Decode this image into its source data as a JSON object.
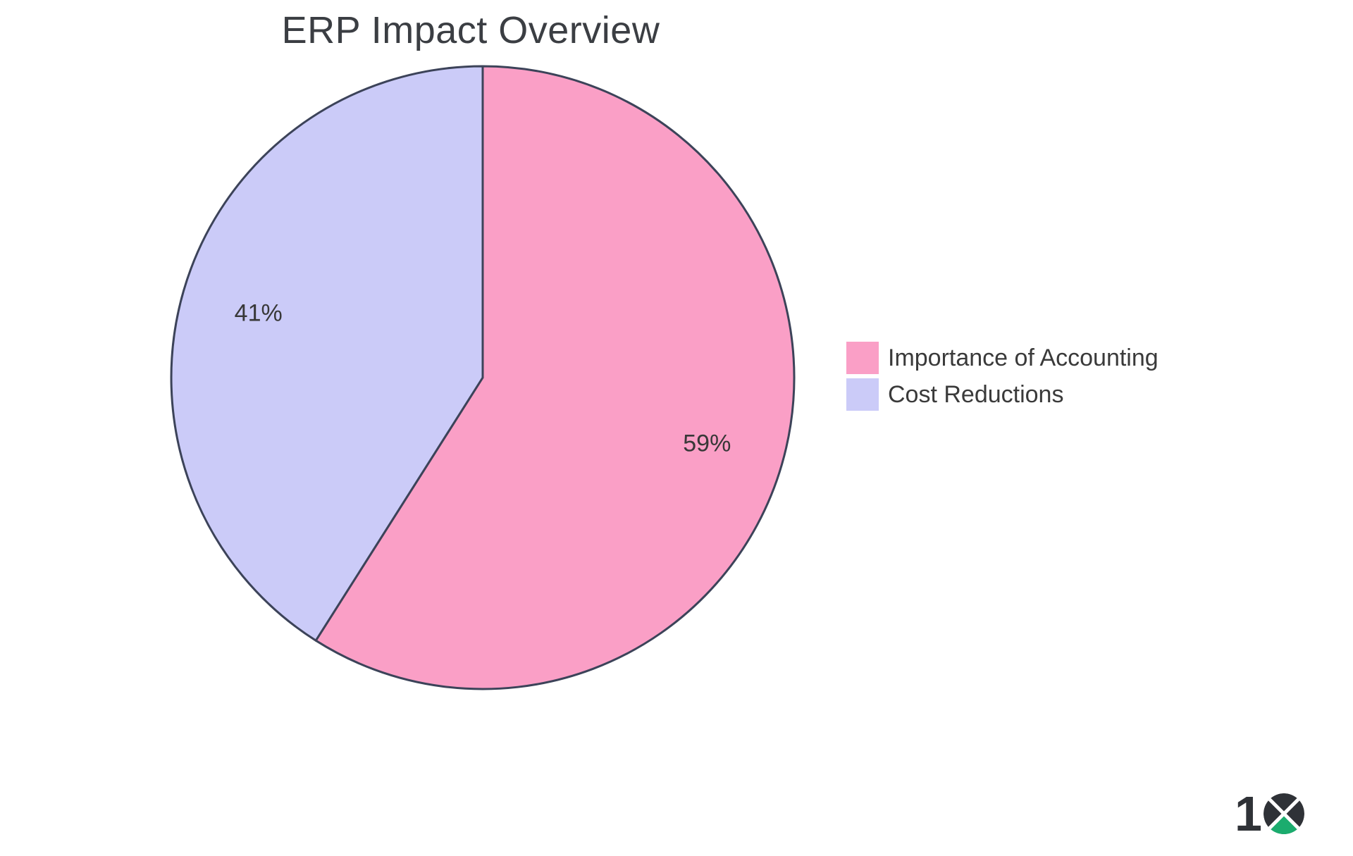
{
  "chart_data": {
    "type": "pie",
    "title": "ERP Impact Overview",
    "labels": [
      "Importance of Accounting",
      "Cost Reductions"
    ],
    "values": [
      59,
      41
    ],
    "value_labels": [
      "59%",
      "41%"
    ],
    "colors": [
      "#FA9FC6",
      "#CBCBF8"
    ],
    "border_color": "#3C4359",
    "label_color": "#383838",
    "start_angle_deg": 0,
    "direction": "clockwise",
    "legend_position": "right",
    "background": "#FFFFFF"
  },
  "watermark": {
    "text": "1",
    "icon": "pie-x-logo-icon",
    "dark_color": "#2F3237",
    "accent_color": "#1BAC6E"
  }
}
